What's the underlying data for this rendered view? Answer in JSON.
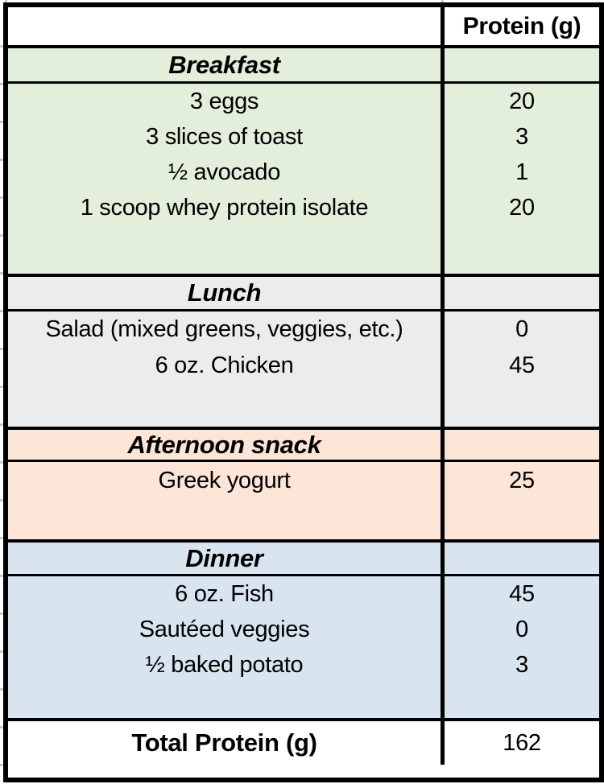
{
  "table": {
    "header": {
      "item_label": "",
      "protein_label": "Protein (g)"
    },
    "sections": [
      {
        "name": "Breakfast",
        "color": "#e3eedb",
        "rows": [
          {
            "item": "3 eggs",
            "protein": "20"
          },
          {
            "item": "3 slices of toast",
            "protein": "3"
          },
          {
            "item": "½ avocado",
            "protein": "1"
          },
          {
            "item": "1 scoop whey protein isolate",
            "protein": "20"
          }
        ]
      },
      {
        "name": "Lunch",
        "color": "#ececec",
        "rows": [
          {
            "item": "Salad (mixed greens, veggies, etc.)",
            "protein": "0"
          },
          {
            "item": "6 oz. Chicken",
            "protein": "45"
          }
        ]
      },
      {
        "name": "Afternoon snack",
        "color": "#fce4d6",
        "rows": [
          {
            "item": "Greek yogurt",
            "protein": "25"
          }
        ]
      },
      {
        "name": "Dinner",
        "color": "#d9e4f1",
        "rows": [
          {
            "item": "6 oz. Fish",
            "protein": "45"
          },
          {
            "item": "Sautéed veggies",
            "protein": "0"
          },
          {
            "item": "½ baked potato",
            "protein": "3"
          }
        ]
      }
    ],
    "total": {
      "label": "Total Protein (g)",
      "value": "162"
    },
    "border_color": "#000000"
  }
}
